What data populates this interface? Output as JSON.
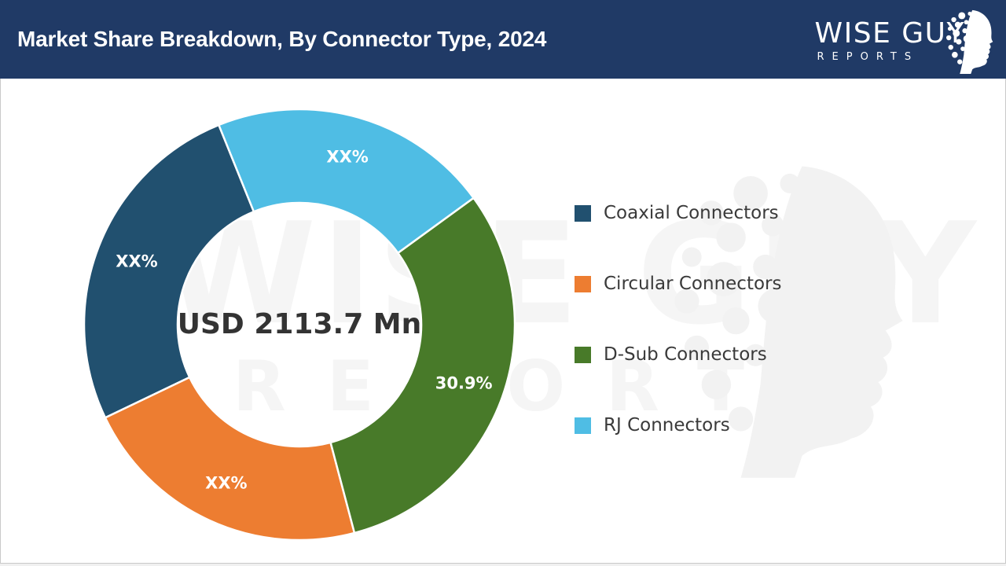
{
  "header": {
    "title": "Market Share Breakdown, By Connector Type, 2024",
    "bg_color": "#203a66",
    "logo": {
      "line1": "WISE GUY",
      "line2": "REPORTS"
    }
  },
  "watermark": {
    "line1": "WISE GUY",
    "line2": "REPORTS"
  },
  "chart_data": {
    "type": "pie",
    "variant": "donut",
    "title": "Market Share Breakdown, By Connector Type, 2024",
    "center_label": "USD 2113.7 Mn",
    "start_angle_deg": 112,
    "direction": "counterclockwise",
    "legend_position": "right",
    "slices": [
      {
        "label": "Coaxial Connectors",
        "display_pct": "XX%",
        "share_pct": 26.0,
        "color": "#21506f"
      },
      {
        "label": "Circular Connectors",
        "display_pct": "XX%",
        "share_pct": 22.0,
        "color": "#ed7d31"
      },
      {
        "label": "D-Sub Connectors",
        "display_pct": "30.9%",
        "share_pct": 30.9,
        "color": "#487a29"
      },
      {
        "label": "RJ Connectors",
        "display_pct": "XX%",
        "share_pct": 21.1,
        "color": "#4fbde4"
      }
    ]
  }
}
